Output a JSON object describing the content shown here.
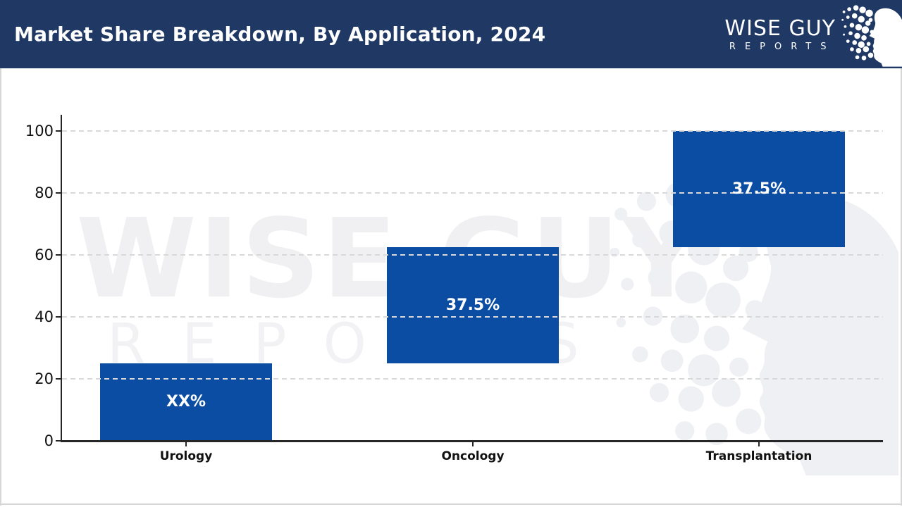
{
  "header": {
    "title": "Market Share Breakdown, By Application, 2024",
    "bg_color": "#1f3864",
    "logo": {
      "line1": "WISE GUY",
      "line2": "REPORTS"
    }
  },
  "watermark": {
    "line1": "WISE GUY",
    "line2": "REPORTS"
  },
  "chart_data": {
    "type": "bar",
    "variant": "waterfall-floating-bars",
    "title": "Market Share Breakdown, By Application, 2024",
    "categories": [
      "Urology",
      "Oncology",
      "Transplantation"
    ],
    "segments": [
      {
        "category": "Urology",
        "start": 0,
        "end": 25,
        "label": "XX%"
      },
      {
        "category": "Oncology",
        "start": 25,
        "end": 62.5,
        "label": "37.5%"
      },
      {
        "category": "Transplantation",
        "start": 62.5,
        "end": 100,
        "label": "37.5%"
      }
    ],
    "yticks": [
      0,
      20,
      40,
      60,
      80,
      100
    ],
    "ylim": [
      0,
      105
    ],
    "xlabel": "",
    "ylabel": "",
    "grid": "horizontal-dashed",
    "legend": "none",
    "bar_color": "#0b4da2",
    "value_label_color": "#ffffff",
    "axis_color": "#262626",
    "gridline_color": "#d9d9d9"
  }
}
